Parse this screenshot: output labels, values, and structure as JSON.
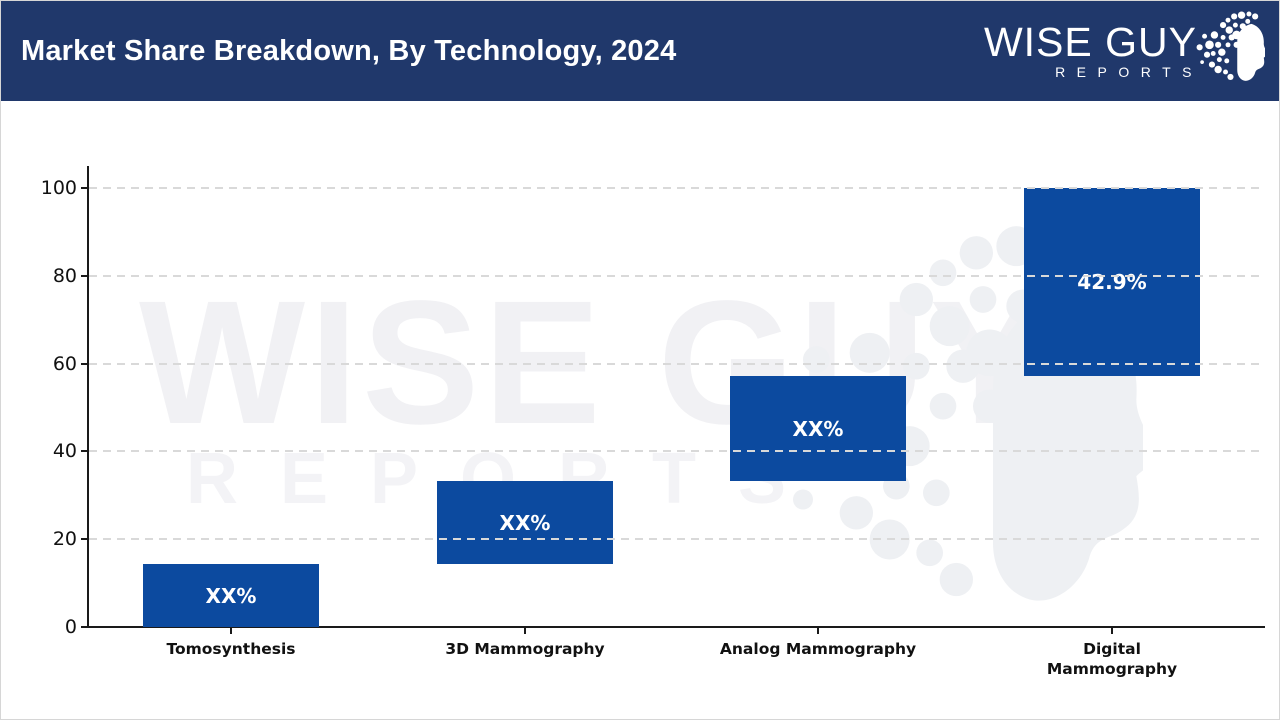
{
  "header": {
    "title": "Market Share Breakdown, By Technology, 2024",
    "bg_color": "#20386b",
    "logo_line1": "WISE GUY",
    "logo_line2": "REPORTS"
  },
  "watermark": {
    "line1": "WISE GUY",
    "line2": "REPORTS"
  },
  "chart_data": {
    "type": "bar",
    "subtype": "waterfall",
    "title": "Market Share Breakdown, By Technology, 2024",
    "categories": [
      "Tomosynthesis",
      "3D Mammography",
      "Analog Mammography",
      "Digital\nMammography"
    ],
    "segments": [
      {
        "category": "Tomosynthesis",
        "start": 0,
        "end": 14.3,
        "label": "XX%"
      },
      {
        "category": "3D Mammography",
        "start": 14.3,
        "end": 33.3,
        "label": "XX%"
      },
      {
        "category": "Analog Mammography",
        "start": 33.3,
        "end": 57.1,
        "label": "XX%"
      },
      {
        "category": "Digital Mammography",
        "start": 57.1,
        "end": 100,
        "label": "42.9%"
      }
    ],
    "ylim": [
      0,
      105
    ],
    "yticks": [
      0,
      20,
      40,
      60,
      80,
      100
    ],
    "xlabel": "",
    "ylabel": "",
    "grid": "horizontal dashed, drawn over bars",
    "legend": "none",
    "bar_color": "#0c4a9f",
    "bar_label_color": "#ffffff",
    "grid_color": "#d9d9d9",
    "axis_color": "#1a1a1a"
  }
}
